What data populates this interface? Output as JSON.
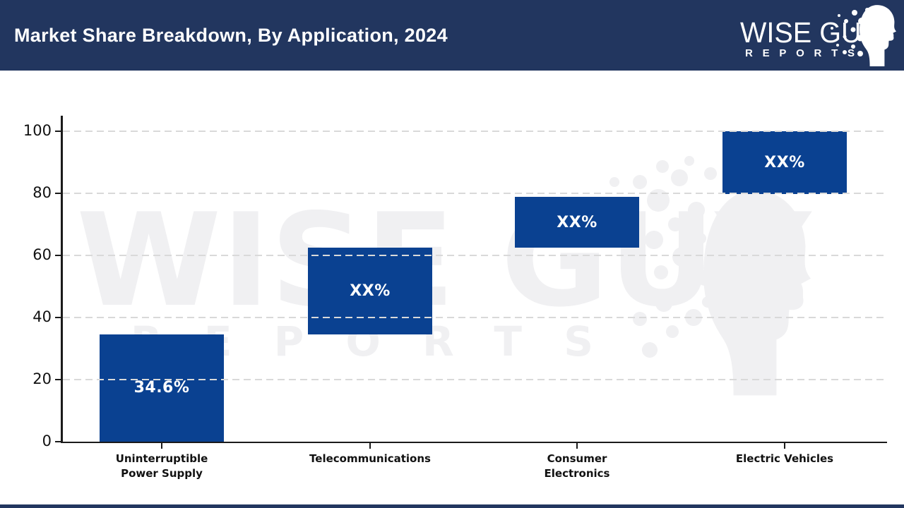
{
  "header": {
    "title": "Market Share Breakdown, By Application, 2024",
    "logo": {
      "name_top": "WISE GUY",
      "name_bottom": "REPORTS"
    }
  },
  "watermark": {
    "text_top": "WISE GUY",
    "text_bottom": "REPORTS"
  },
  "chart_data": {
    "type": "bar",
    "variant": "waterfall",
    "title": "Market Share Breakdown, By Application, 2024",
    "xlabel": "",
    "ylabel": "",
    "ylim": [
      0,
      105
    ],
    "y_ticks": [
      0,
      20,
      40,
      60,
      80,
      100
    ],
    "grid": "horizontal-dashed",
    "legend": "none",
    "bar_color": "#0a4191",
    "categories": [
      "Uninterruptible Power Supply",
      "Telecommunications",
      "Consumer Electronics",
      "Electric Vehicles"
    ],
    "category_label_lines": [
      [
        "Uninterruptible",
        "Power Supply"
      ],
      [
        "Telecommunications"
      ],
      [
        "Consumer",
        "Electronics"
      ],
      [
        "Electric Vehicles"
      ]
    ],
    "segments": [
      {
        "category": "Uninterruptible Power Supply",
        "start": 0,
        "end": 34.6,
        "label": "34.6%"
      },
      {
        "category": "Telecommunications",
        "start": 34.6,
        "end": 62.4,
        "label": "XX%"
      },
      {
        "category": "Consumer Electronics",
        "start": 62.4,
        "end": 78.9,
        "label": "XX%"
      },
      {
        "category": "Electric Vehicles",
        "start": 79.8,
        "end": 100,
        "label": "XX%"
      }
    ]
  },
  "colors": {
    "header_bg": "#22365f",
    "bar": "#0a4191",
    "watermark": "#f0f0f2",
    "gridline": "#d9d9d9",
    "axis": "#1a1a1a"
  }
}
